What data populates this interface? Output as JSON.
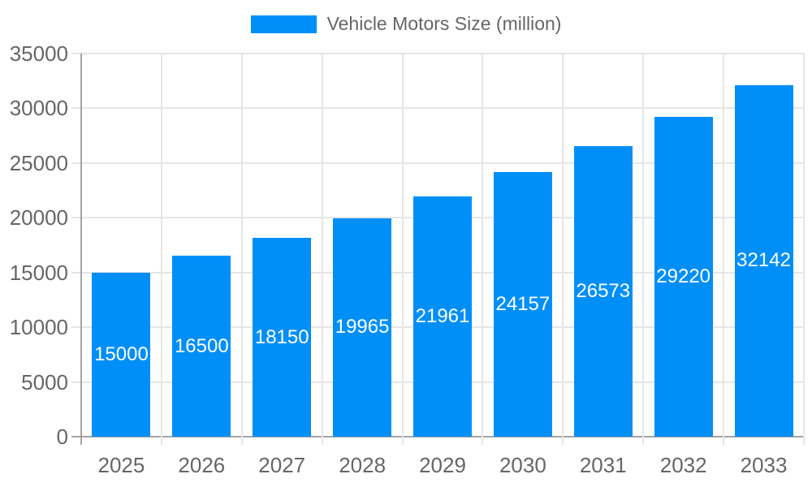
{
  "colors": {
    "bar": "#008ff9",
    "grid": "#e6e6e6",
    "axis": "#a3a3a3",
    "tick_text": "#666666",
    "bar_label_text": "#ffffff",
    "legend_text": "#666666",
    "background": "#ffffff"
  },
  "legend": {
    "swatch_icon": "legend-color-swatch",
    "label": "Vehicle Motors Size (million)"
  },
  "chart_data": {
    "type": "bar",
    "title": "Vehicle Motors Size (million)",
    "categories": [
      "2025",
      "2026",
      "2027",
      "2028",
      "2029",
      "2030",
      "2031",
      "2032",
      "2033"
    ],
    "values": [
      15000,
      16500,
      18150,
      19965,
      21961,
      24157,
      26573,
      29220,
      32142
    ],
    "series": [
      {
        "name": "Vehicle Motors Size (million)",
        "values": [
          15000,
          16500,
          18150,
          19965,
          21961,
          24157,
          26573,
          29220,
          32142
        ]
      }
    ],
    "xlabel": "",
    "ylabel": "",
    "ylim": [
      0,
      35000
    ],
    "yticks": [
      0,
      5000,
      10000,
      15000,
      20000,
      25000,
      30000,
      35000
    ],
    "grid": true,
    "legend_position": "top-center",
    "value_labels_position": "inside-center",
    "bar_color": "#008ff9"
  }
}
